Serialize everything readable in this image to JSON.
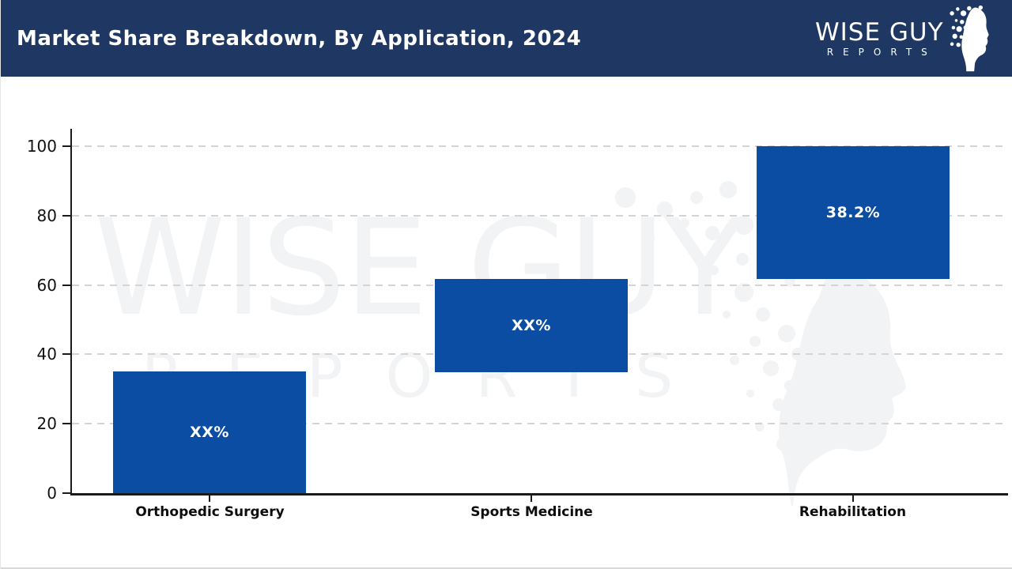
{
  "header": {
    "title": "Market Share Breakdown, By Application, 2024",
    "logo": {
      "brand": "WISE GUY",
      "sub": "REPORTS"
    }
  },
  "watermark": {
    "brand": "WISE GUY",
    "sub": "REPORTS"
  },
  "chart_data": {
    "type": "bar",
    "subtype": "stacked-percentage-waterfall",
    "title": "Market Share Breakdown, By Application, 2024",
    "categories": [
      "Orthopedic Surgery",
      "Sports Medicine",
      "Rehabilitation"
    ],
    "bars": [
      {
        "category": "Orthopedic Surgery",
        "from": 0,
        "to": 35,
        "value_label": "XX%"
      },
      {
        "category": "Sports Medicine",
        "from": 35,
        "to": 61.8,
        "value_label": "XX%"
      },
      {
        "category": "Rehabilitation",
        "from": 61.8,
        "to": 100,
        "value_label": "38.2%"
      }
    ],
    "xlabel": "",
    "ylabel": "",
    "yticks": [
      0,
      20,
      40,
      60,
      80,
      100
    ],
    "ylim": [
      0,
      105
    ],
    "grid": "horizontal-dashed",
    "legend": "none"
  },
  "colors": {
    "header_bg": "#1f3763",
    "bar": "#0b4da2",
    "grid": "#d4d4d4",
    "axis": "#1a1a1a",
    "watermark": "#f2f3f5",
    "bar_label": "#ffffff"
  }
}
